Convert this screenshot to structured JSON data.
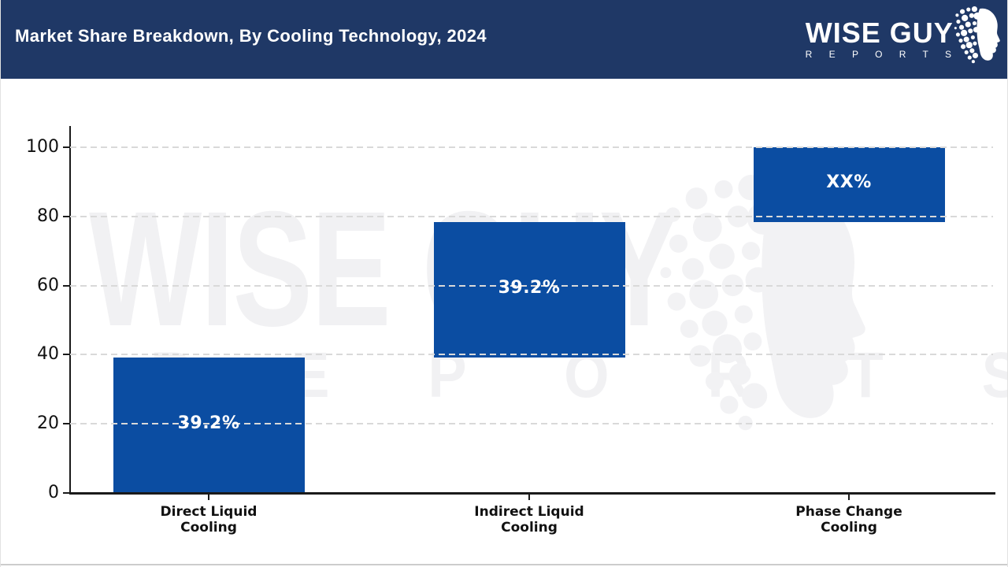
{
  "header": {
    "title": "Market Share Breakdown, By Cooling Technology, 2024",
    "logo": {
      "brand_line1": "WISE GUY",
      "brand_line2": "R E P O R T S"
    }
  },
  "watermark": {
    "line1": "WISE GUY",
    "line2": "R E P O R T S"
  },
  "colors": {
    "header_bg": "#1f3866",
    "bar": "#0b4da2",
    "grid": "#d9d9d9",
    "axis": "#1a1a1a",
    "bar_label_text": "#ffffff",
    "watermark": "#f1f1f3"
  },
  "chart_data": {
    "type": "bar",
    "subtype": "stacked_waterfall_percent",
    "title": "Market Share Breakdown, By Cooling Technology, 2024",
    "categories": [
      "Direct Liquid\nCooling",
      "Indirect Liquid\nCooling",
      "Phase Change\nCooling"
    ],
    "series": [
      {
        "name": "Direct Liquid Cooling",
        "start": 0,
        "end": 39.2,
        "label": "39.2%"
      },
      {
        "name": "Indirect Liquid Cooling",
        "start": 39.2,
        "end": 78.4,
        "label": "39.2%"
      },
      {
        "name": "Phase Change Cooling",
        "start": 78.4,
        "end": 100,
        "label": "XX%"
      }
    ],
    "ylim": [
      0,
      100
    ],
    "yticks": [
      0,
      20,
      40,
      60,
      80,
      100
    ],
    "xlabel": "",
    "ylabel": "",
    "grid": "horizontal-dashed",
    "legend": "none",
    "bar_color": "#0b4da2"
  }
}
